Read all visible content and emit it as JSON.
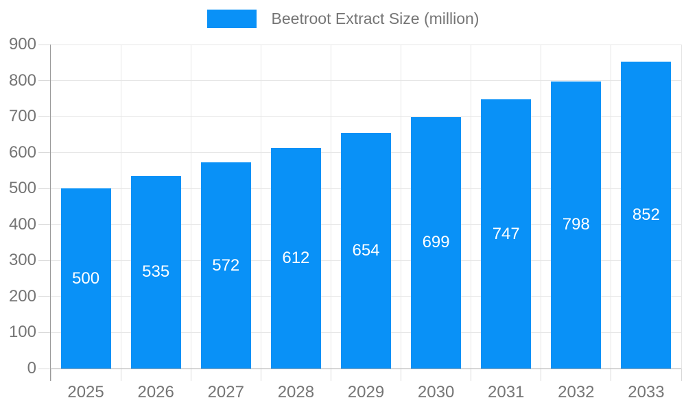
{
  "legend": {
    "label": "Beetroot Extract Size (million)"
  },
  "colors": {
    "bar": "#0991f7",
    "grid": "#e6e6e6",
    "axis_line": "#9e9e9e",
    "axis_text": "#757575",
    "value_label_text": "#ffffff",
    "background": "#ffffff"
  },
  "chart_data": {
    "type": "bar",
    "title": "",
    "categories": [
      "2025",
      "2026",
      "2027",
      "2028",
      "2029",
      "2030",
      "2031",
      "2032",
      "2033"
    ],
    "values": [
      500,
      535,
      572,
      612,
      654,
      699,
      747,
      798,
      852
    ],
    "series_name": "Beetroot Extract Size (million)",
    "xlabel": "",
    "ylabel": "",
    "ylim": [
      0,
      900
    ],
    "ytick_step": 100,
    "grid": true,
    "legend_position": "top-center",
    "value_labels": "inside-center",
    "bar_color": "#0991f7"
  }
}
